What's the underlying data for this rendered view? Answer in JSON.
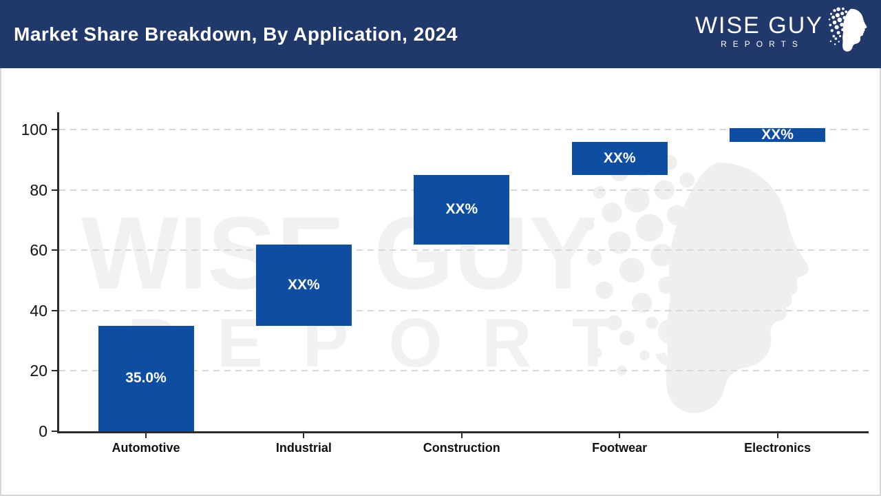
{
  "header": {
    "title": "Market Share Breakdown, By Application, 2024",
    "bg_color": "#21386b",
    "logo": {
      "line1": "WISE GUY",
      "line2": "REPORTS"
    }
  },
  "watermark": {
    "line1": "WISE GUY",
    "line2": "REPORTS"
  },
  "chart_data": {
    "type": "bar",
    "subtype": "waterfall",
    "title": "Market Share Breakdown, By Application, 2024",
    "categories": [
      "Automotive",
      "Industrial",
      "Construction",
      "Footwear",
      "Electronics"
    ],
    "segments": [
      {
        "category": "Automotive",
        "start": 0,
        "end": 35,
        "label": "35.0%"
      },
      {
        "category": "Industrial",
        "start": 35,
        "end": 62,
        "label": "XX%"
      },
      {
        "category": "Construction",
        "start": 62,
        "end": 85,
        "label": "XX%"
      },
      {
        "category": "Footwear",
        "start": 85,
        "end": 96,
        "label": "XX%"
      },
      {
        "category": "Electronics",
        "start": 96,
        "end": 100.5,
        "label": "XX%"
      }
    ],
    "y_ticks": [
      0,
      20,
      40,
      60,
      80,
      100
    ],
    "ylim": [
      0,
      105.8
    ],
    "xlabel": "",
    "ylabel": "",
    "grid": "horizontal-dashed",
    "legend": "none",
    "bar_color": "#0d4da2",
    "bar_label_color": "#ffffff",
    "axis_color": "#2b2b2b",
    "grid_color": "#d8d8d8"
  }
}
